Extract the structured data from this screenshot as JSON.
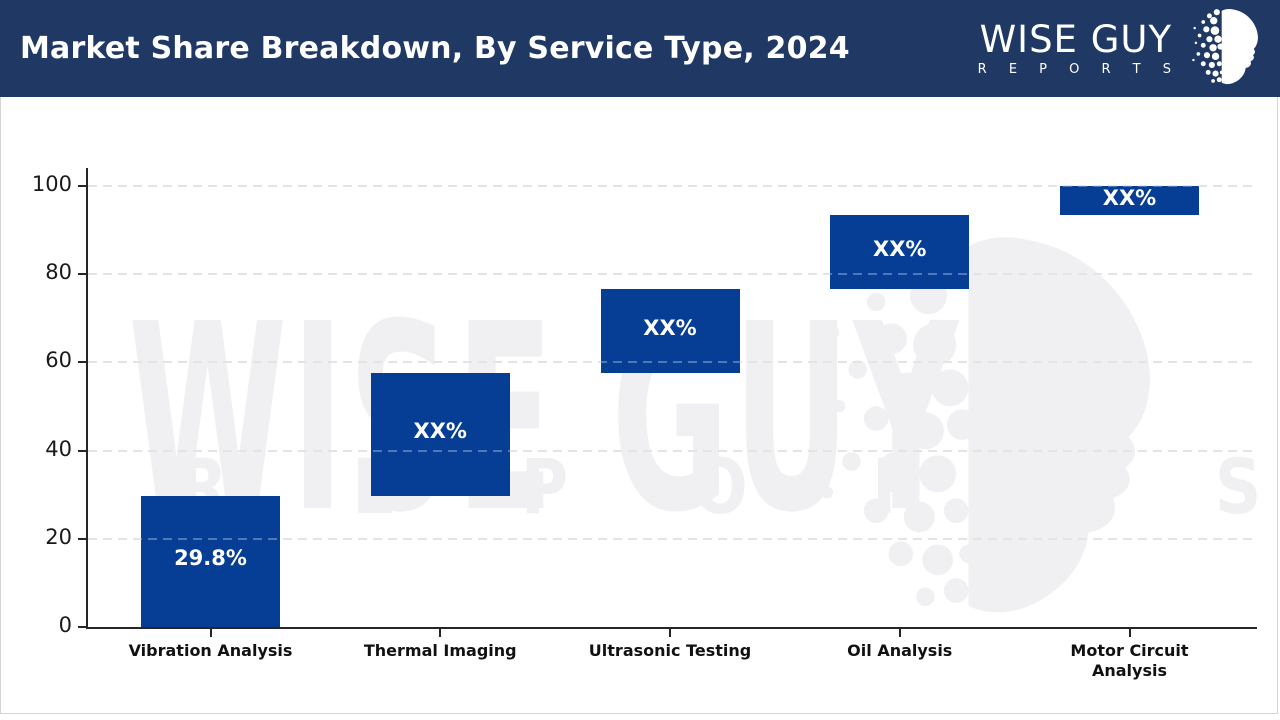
{
  "header": {
    "title": "Market Share Breakdown, By Service Type, 2024",
    "logo": {
      "name": "WISE GUY",
      "tagline": "R E P O R T S"
    }
  },
  "watermark": {
    "line1": "WISE GUY",
    "line2": "R E P O R T S"
  },
  "colors": {
    "header_bg": "#1f3864",
    "bar": "#053e94",
    "gridline": "#d9d9d9",
    "axis": "#262626",
    "bar_label": "#ffffff",
    "watermark": "#f0f0f3"
  },
  "chart_data": {
    "type": "bar",
    "subtype": "floating-waterfall",
    "title": "Market Share Breakdown, By Service Type, 2024",
    "xlabel": "",
    "ylabel": "",
    "categories": [
      "Vibration Analysis",
      "Thermal Imaging",
      "Ultrasonic Testing",
      "Oil Analysis",
      "Motor Circuit Analysis"
    ],
    "segments": [
      {
        "category": "Vibration Analysis",
        "start": 0,
        "end": 29.8,
        "label": "29.8%"
      },
      {
        "category": "Thermal Imaging",
        "start": 29.8,
        "end": 57.6,
        "label": "XX%"
      },
      {
        "category": "Ultrasonic Testing",
        "start": 57.6,
        "end": 76.6,
        "label": "XX%"
      },
      {
        "category": "Oil Analysis",
        "start": 76.6,
        "end": 93.4,
        "label": "XX%"
      },
      {
        "category": "Motor Circuit Analysis",
        "start": 93.4,
        "end": 100,
        "label": "XX%"
      }
    ],
    "y_ticks": [
      0,
      20,
      40,
      60,
      80,
      100
    ],
    "ylim": [
      0,
      100
    ],
    "grid": "horizontal-dashed",
    "legend": "none"
  }
}
